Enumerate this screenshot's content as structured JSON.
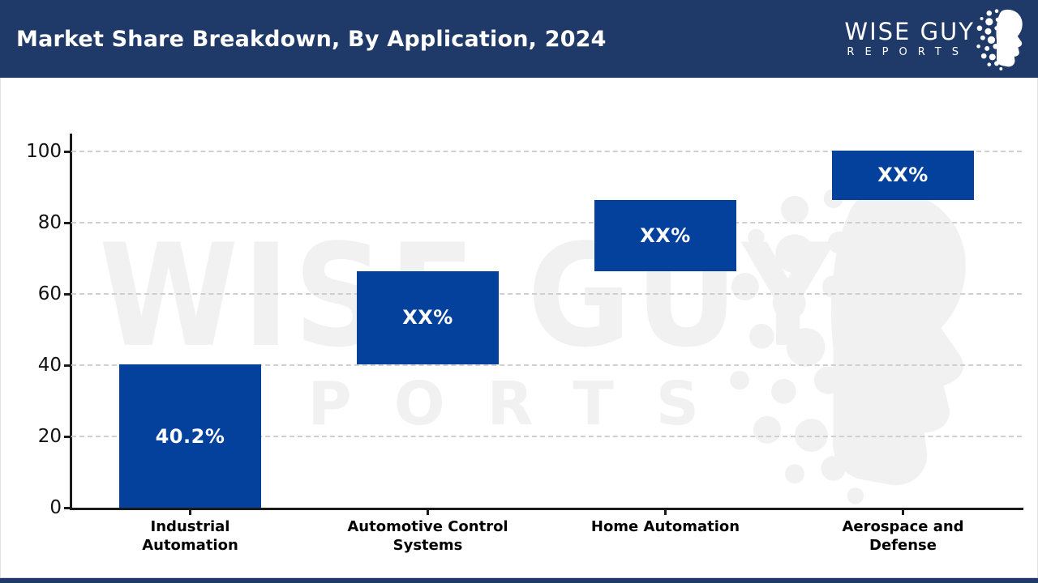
{
  "header": {
    "title": "Market Share Breakdown, By Application, 2024",
    "logo": {
      "wordmark": "WISE GUY",
      "subtitle": "REPORTS"
    }
  },
  "watermark": {
    "wordmark": "WISE GUY",
    "subtitle": "REPORTS"
  },
  "chart_data": {
    "type": "bar",
    "subtype": "floating-waterfall",
    "title": "Market Share Breakdown, By Application, 2024",
    "categories": [
      "Industrial Automation",
      "Automotive Control Systems",
      "Home Automation",
      "Aerospace and Defense"
    ],
    "segments": [
      {
        "category": "Industrial Automation",
        "label_lines": [
          "Industrial",
          "Automation"
        ],
        "start": 0,
        "end": 40.2,
        "value_label": "40.2%"
      },
      {
        "category": "Automotive Control Systems",
        "label_lines": [
          "Automotive Control",
          "Systems"
        ],
        "start": 40.2,
        "end": 66.4,
        "value_label": "XX%"
      },
      {
        "category": "Home Automation",
        "label_lines": [
          "Home Automation"
        ],
        "start": 66.4,
        "end": 86.4,
        "value_label": "XX%"
      },
      {
        "category": "Aerospace and Defense",
        "label_lines": [
          "Aerospace and",
          "Defense"
        ],
        "start": 86.4,
        "end": 100.2,
        "value_label": "XX%"
      }
    ],
    "xlabel": "",
    "ylabel": "",
    "ylim": [
      0,
      105
    ],
    "yticks": [
      0,
      20,
      40,
      60,
      80,
      100
    ],
    "grid": "horizontal-dashed",
    "legend": "none",
    "bar_width_frac": 0.6,
    "colors": {
      "bar": "#04419D",
      "bar_label": "#FFFFFF",
      "grid": "#CFCFCF",
      "axis": "#1A1A1A",
      "header_bg": "#1F3A68",
      "title_text": "#FFFFFF",
      "watermark": "#F1F1F2"
    }
  }
}
